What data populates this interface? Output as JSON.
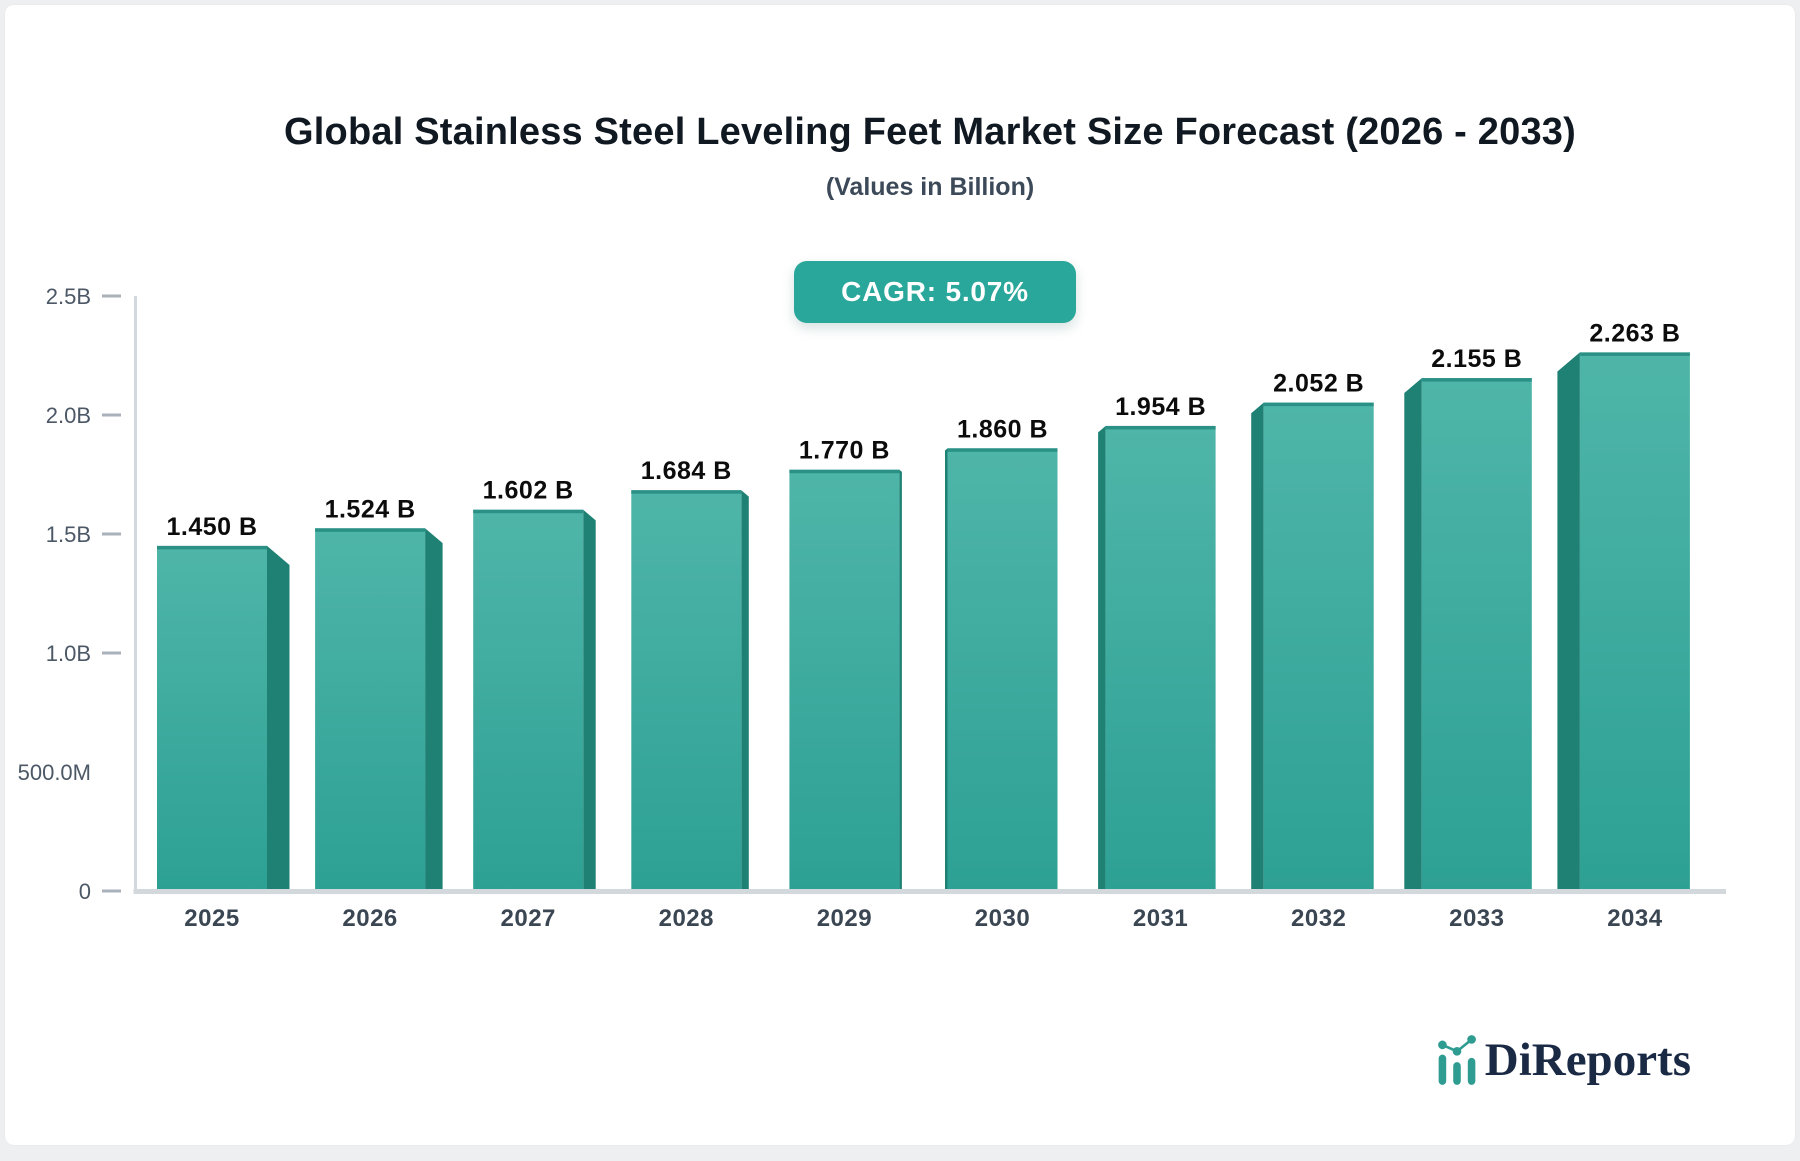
{
  "header": {
    "title": "Global Stainless Steel Leveling Feet Market Size Forecast (2026 - 2033)",
    "subtitle": "(Values in Billion)"
  },
  "badge": {
    "label": "CAGR: 5.07%",
    "background": "#29a79a",
    "text_color": "#ffffff"
  },
  "chart_data": {
    "type": "bar",
    "title": "Global Stainless Steel Leveling Feet Market Size Forecast (2026 - 2033)",
    "subtitle": "(Values in Billion)",
    "cagr": "5.07%",
    "categories": [
      "2025",
      "2026",
      "2027",
      "2028",
      "2029",
      "2030",
      "2031",
      "2032",
      "2033",
      "2034"
    ],
    "values": [
      1.45,
      1.524,
      1.602,
      1.684,
      1.77,
      1.86,
      1.954,
      2.052,
      2.155,
      2.263
    ],
    "value_labels": [
      "1.450 B",
      "1.524 B",
      "1.602 B",
      "1.684 B",
      "1.770 B",
      "1.860 B",
      "1.954 B",
      "2.052 B",
      "2.155 B",
      "2.263 B"
    ],
    "xlabel": "",
    "ylabel": "",
    "ylim": [
      0,
      2.5
    ],
    "y_ticks": [
      {
        "label": "2.5B",
        "value": 2.5,
        "tick": true
      },
      {
        "label": "2.0B",
        "value": 2.0,
        "tick": true
      },
      {
        "label": "1.5B",
        "value": 1.5,
        "tick": true
      },
      {
        "label": "1.0B",
        "value": 1.0,
        "tick": true
      },
      {
        "label": "500.0M",
        "value": 0.5,
        "tick": false
      },
      {
        "label": "0",
        "value": 0.0,
        "tick": true
      }
    ],
    "grid": false,
    "legend": "none",
    "colors": {
      "bar_face_top": "#4fb5a9",
      "bar_face_bottom": "#2da094",
      "bar_side": "#1f8174",
      "bar_top_edge": "#2b9186",
      "axis_line": "#d3d8dd",
      "tick_mark": "#a9b2bb",
      "y_tick_label": "#4c5866",
      "x_tick_label": "#3b4653",
      "value_label": "#0c0c0c"
    }
  },
  "logo": {
    "text": "DiReports",
    "icon": "bar-line-chart-icon",
    "text_color": "#1a2944",
    "icon_color": "#2f9c91"
  }
}
